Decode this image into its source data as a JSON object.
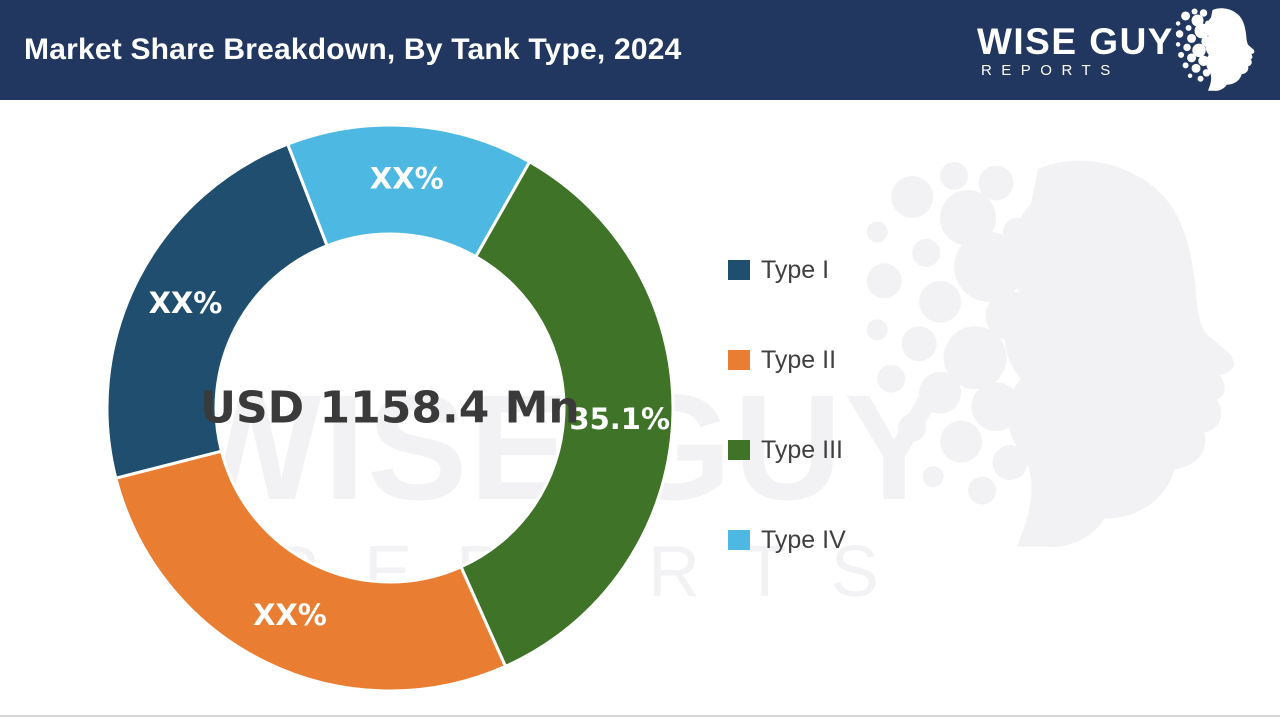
{
  "header": {
    "title": "Market Share Breakdown, By Tank Type, 2024",
    "background_color": "#223760",
    "logo": {
      "brand": "WISE GUY",
      "brand_sub": "REPORTS"
    }
  },
  "watermark": {
    "line1": "WISE GUY",
    "line2": "REPORTS",
    "color": "#F2F2F4"
  },
  "chart_data": {
    "type": "pie",
    "variant": "donut",
    "title": "Market Share Breakdown, By Tank Type, 2024",
    "center_label": "USD 1158.4 Mn",
    "start_angle_deg": -21.2,
    "clockwise": true,
    "legend_position": "right",
    "segments": [
      {
        "label": "Type IV",
        "pct": 14.1,
        "display_label": "XX%",
        "color": "#4DB9E2"
      },
      {
        "label": "Type III",
        "pct": 35.1,
        "display_label": "35.1%",
        "color": "#3F7428"
      },
      {
        "label": "Type II",
        "pct": 27.7,
        "display_label": "XX%",
        "color": "#E97E33"
      },
      {
        "label": "Type I",
        "pct": 23.1,
        "display_label": "XX%",
        "color": "#1F4E6E"
      }
    ],
    "legend": [
      {
        "label": "Type I",
        "color": "#1F4E6E"
      },
      {
        "label": "Type II",
        "color": "#E97E33"
      },
      {
        "label": "Type III",
        "color": "#3F7428"
      },
      {
        "label": "Type IV",
        "color": "#4DB9E2"
      }
    ]
  }
}
